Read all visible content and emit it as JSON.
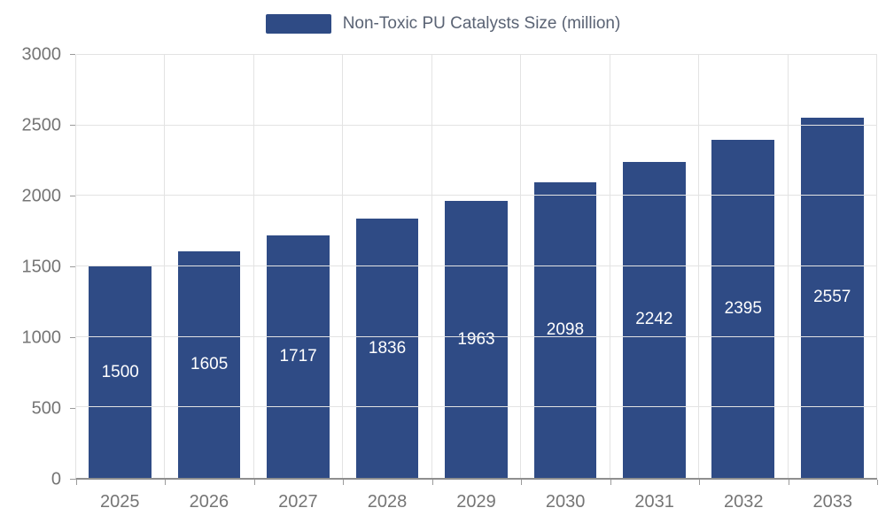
{
  "legend": {
    "label": "Non-Toxic PU Catalysts Size (million)",
    "swatch_color": "#2f4b85"
  },
  "chart_data": {
    "type": "bar",
    "title": "Non-Toxic PU Catalysts Size (million)",
    "categories": [
      "2025",
      "2026",
      "2027",
      "2028",
      "2029",
      "2030",
      "2031",
      "2032",
      "2033"
    ],
    "values": [
      1500,
      1605,
      1717,
      1836,
      1963,
      2098,
      2242,
      2395,
      2557
    ],
    "xlabel": "",
    "ylabel": "",
    "ylim": [
      0,
      3000
    ],
    "yticks": [
      0,
      500,
      1000,
      1500,
      2000,
      2500,
      3000
    ],
    "grid": true,
    "legend_position": "top",
    "bar_color": "#2f4b85",
    "bar_label_color": "#ffffff",
    "axis_text_color": "#757575",
    "grid_color": "#e3e3e3"
  }
}
